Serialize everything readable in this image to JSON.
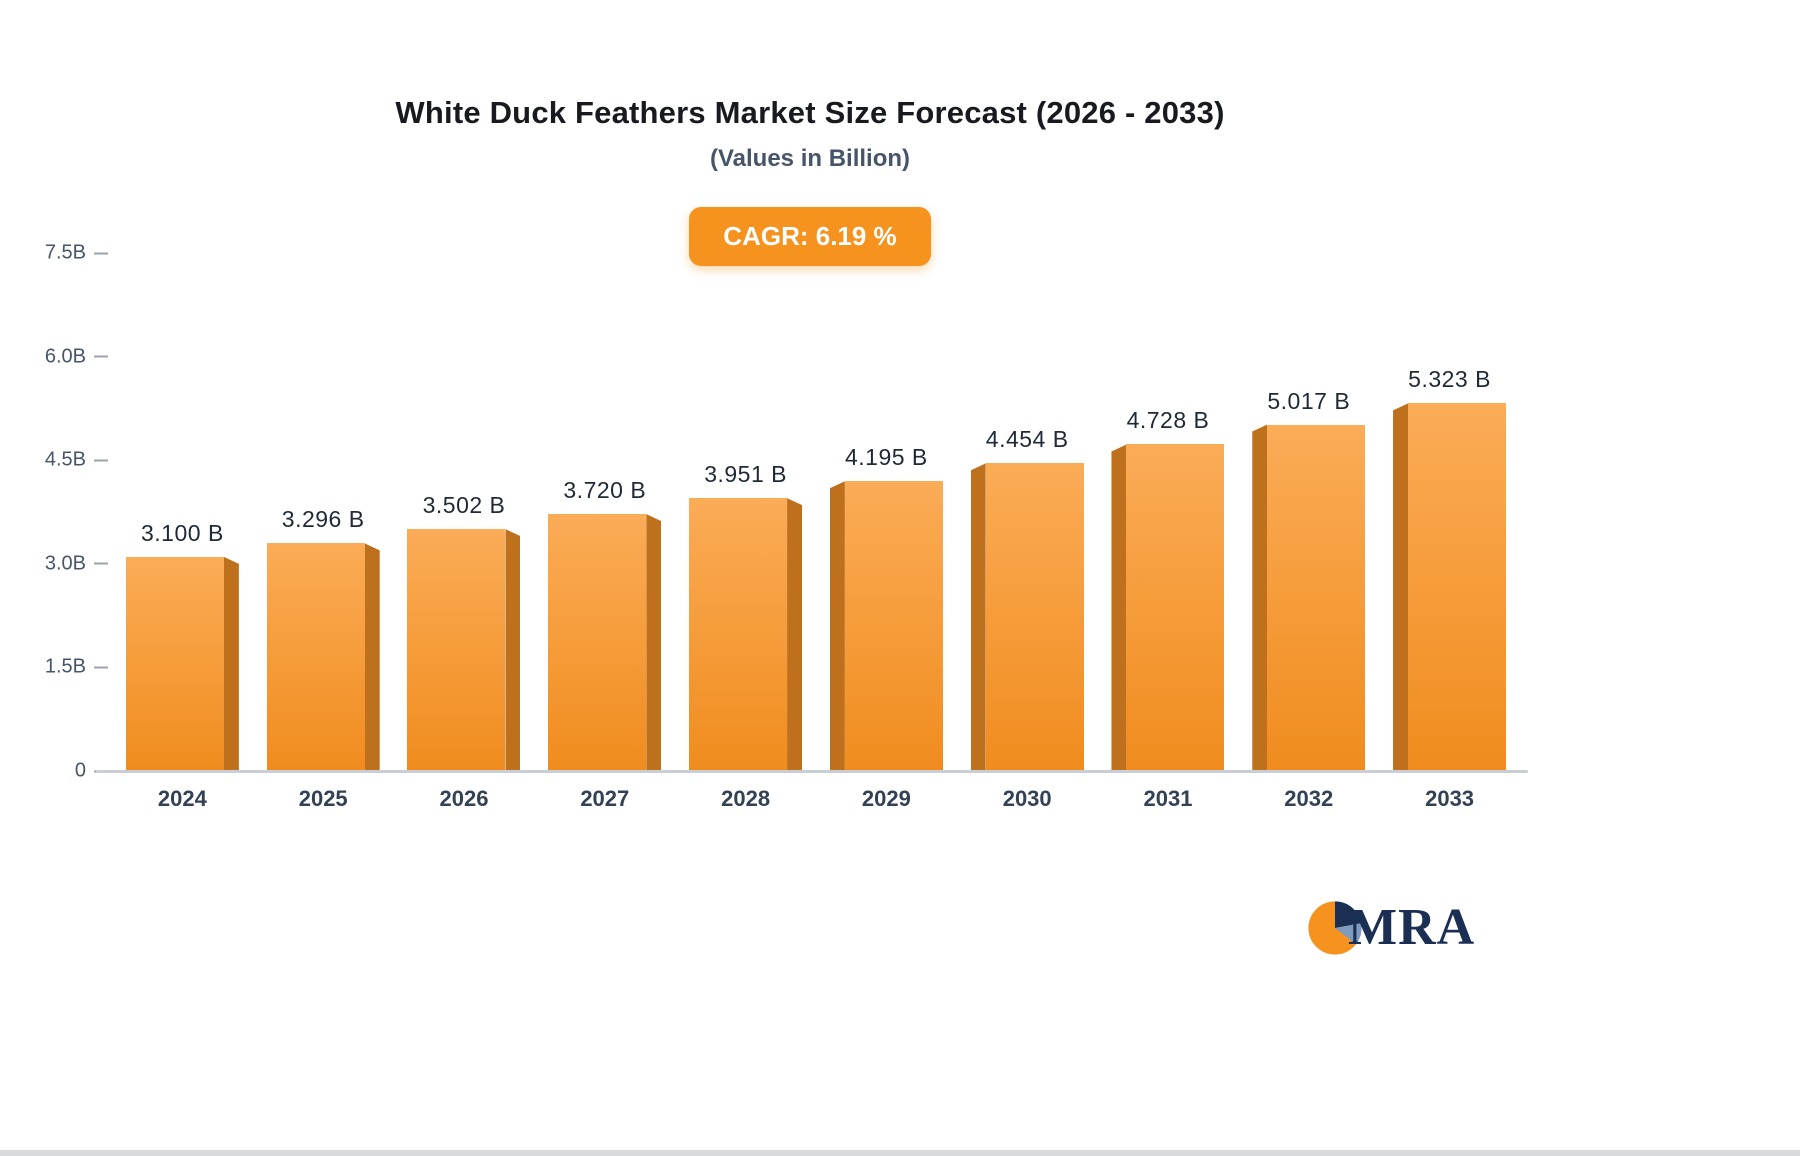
{
  "header": {
    "title": "White Duck Feathers Market Size Forecast (2026 - 2033)",
    "subtitle": "(Values in Billion)",
    "cagr_badge": "CAGR: 6.19 %"
  },
  "footer": {
    "logo_text": "MRA"
  },
  "chart_data": {
    "type": "bar",
    "title": "White Duck Feathers Market Size Forecast (2026 - 2033)",
    "subtitle": "(Values in Billion)",
    "cagr_percent": 6.19,
    "categories": [
      "2024",
      "2025",
      "2026",
      "2027",
      "2028",
      "2029",
      "2030",
      "2031",
      "2032",
      "2033"
    ],
    "values": [
      3.1,
      3.296,
      3.502,
      3.72,
      3.951,
      4.195,
      4.454,
      4.728,
      5.017,
      5.323
    ],
    "value_labels": [
      "3.100 B",
      "3.296 B",
      "3.502 B",
      "3.720 B",
      "3.951 B",
      "4.195 B",
      "4.454 B",
      "4.728 B",
      "5.017 B",
      "5.323 B"
    ],
    "ytick_labels": [
      "0",
      "1.5B",
      "3.0B",
      "4.5B",
      "6.0B",
      "7.5B"
    ],
    "ytick_values": [
      0,
      1.5,
      3.0,
      4.5,
      6.0,
      7.5
    ],
    "ylim": [
      0,
      7.5
    ],
    "xlabel": "",
    "ylabel": "",
    "grid": false,
    "legend": "none",
    "colors": {
      "bar_gradient_top": "#FBAC57",
      "bar_gradient_bottom": "#F08C1E",
      "bar_side": "#BE701C",
      "badge_background": "#F6921E",
      "axis_text": "#475569",
      "value_text": "#1F2937",
      "logo_navy": "#1B2F55",
      "logo_orange": "#F6921E",
      "logo_steel_blue": "#7D9BBF"
    }
  }
}
